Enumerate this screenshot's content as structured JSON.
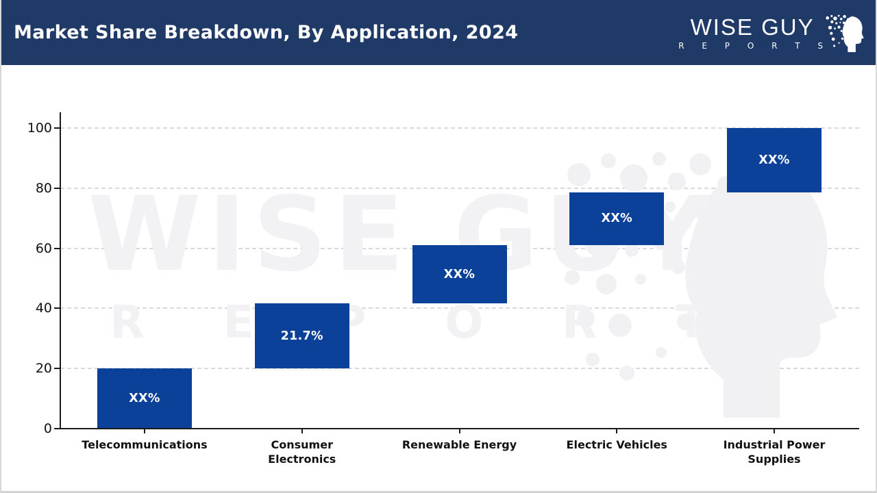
{
  "header": {
    "title": "Market Share Breakdown, By Application, 2024"
  },
  "logo": {
    "line1": "WISE GUY",
    "line2": "R E P O R T S"
  },
  "watermark": {
    "line1": "WISE GUY",
    "line2": "R E P O R T S"
  },
  "colors": {
    "header_bg": "#203a68",
    "bar_blue": "#0b4199",
    "gridline": "#d9d9d9",
    "axis": "#1a1a1a",
    "watermark": "#f2f2f5",
    "bar_label": "#ffffff"
  },
  "chart_data": {
    "type": "bar",
    "subtype": "waterfall",
    "title": "Market Share Breakdown, By Application, 2024",
    "xlabel": "",
    "ylabel": "",
    "ylim": [
      0,
      100
    ],
    "yticks": [
      0,
      20,
      40,
      60,
      80,
      100
    ],
    "grid": "horizontal-dashed",
    "legend": "none",
    "bar_color": "#0b4199",
    "label_color": "#ffffff",
    "categories": [
      "Telecommunications",
      "Consumer\nElectronics",
      "Renewable Energy",
      "Electric Vehicles",
      "Industrial Power\nSupplies"
    ],
    "segments": [
      {
        "category": "Telecommunications",
        "start": 0,
        "end": 20,
        "value": 20,
        "label": "XX%"
      },
      {
        "category": "Consumer Electronics",
        "start": 20,
        "end": 41.7,
        "value": 21.7,
        "label": "21.7%"
      },
      {
        "category": "Renewable Energy",
        "start": 41.7,
        "end": 61,
        "value": 19.3,
        "label": "XX%"
      },
      {
        "category": "Electric Vehicles",
        "start": 61,
        "end": 78.7,
        "value": 17.7,
        "label": "XX%"
      },
      {
        "category": "Industrial Power Supplies",
        "start": 78.7,
        "end": 100,
        "value": 21.3,
        "label": "XX%"
      }
    ]
  }
}
